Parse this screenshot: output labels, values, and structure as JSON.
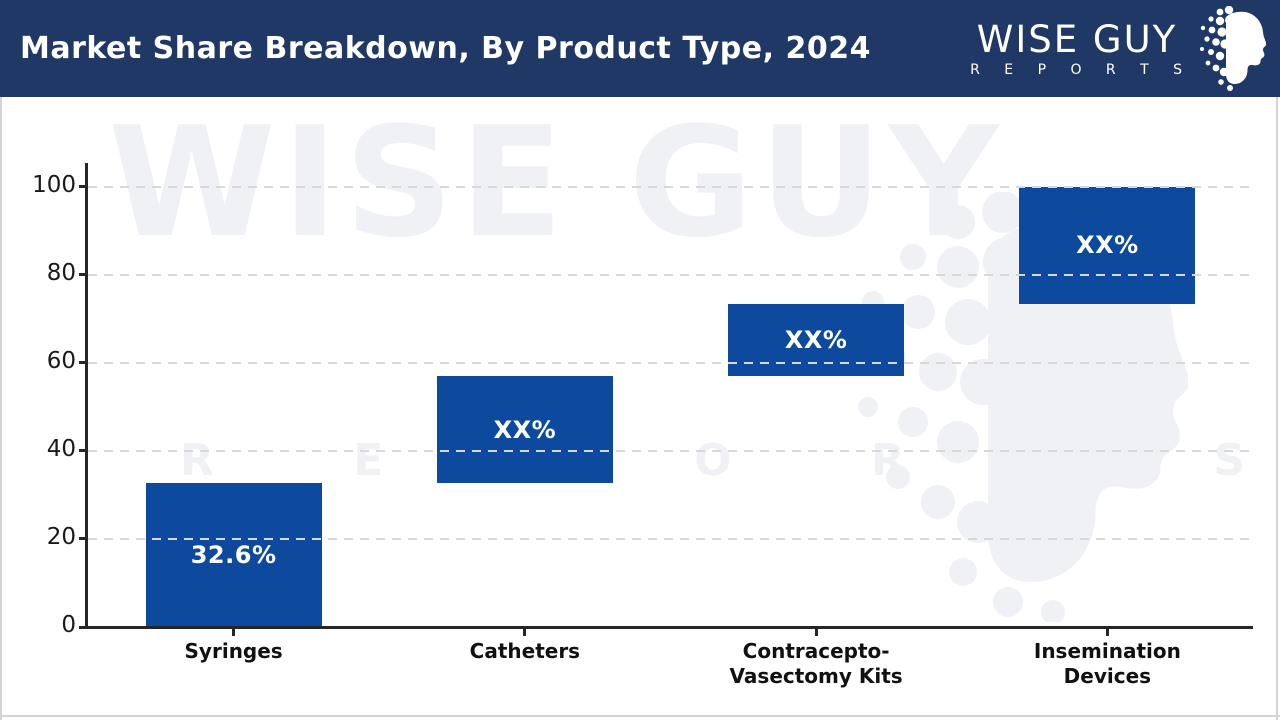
{
  "header": {
    "title": "Market Share Breakdown, By Product Type, 2024",
    "logo": {
      "line1": "WISE GUY",
      "line2": "R E P O R T S"
    }
  },
  "watermark": {
    "line1": "WISE GUY",
    "line2": "R E P O R T S"
  },
  "colors": {
    "header_bg": "#1F3865",
    "bar": "#0D4A9E",
    "grid": "#D8D8D8",
    "axis": "#262626",
    "watermark": "#F0F1F4",
    "bar_label_text": "#FFFFFF",
    "tick_text": "#1A1A1A"
  },
  "chart_data": {
    "type": "bar",
    "subtype": "waterfall",
    "title": "Market Share Breakdown, By Product Type, 2024",
    "categories": [
      "Syringes",
      "Catheters",
      "Contracepto-Vasectomy Kits",
      "Insemination Devices"
    ],
    "category_lines": [
      [
        "Syringes"
      ],
      [
        "Catheters"
      ],
      [
        "Contracepto-",
        "Vasectomy Kits"
      ],
      [
        "Insemination",
        "Devices"
      ]
    ],
    "segments": [
      {
        "category": "Syringes",
        "start": 0,
        "end": 32.6,
        "label": "32.6%"
      },
      {
        "category": "Catheters",
        "start": 32.6,
        "end": 57,
        "label": "XX%"
      },
      {
        "category": "Contracepto-Vasectomy Kits",
        "start": 57,
        "end": 73.4,
        "label": "XX%"
      },
      {
        "category": "Insemination Devices",
        "start": 73.4,
        "end": 100,
        "label": "XX%"
      }
    ],
    "xlabel": "",
    "ylabel": "",
    "ylim": [
      0,
      100
    ],
    "yticks": [
      0,
      20,
      40,
      60,
      80,
      100
    ],
    "grid": "horizontal-dashed, drawn above bars",
    "legend": "none",
    "bar_color": "#0D4A9E"
  }
}
